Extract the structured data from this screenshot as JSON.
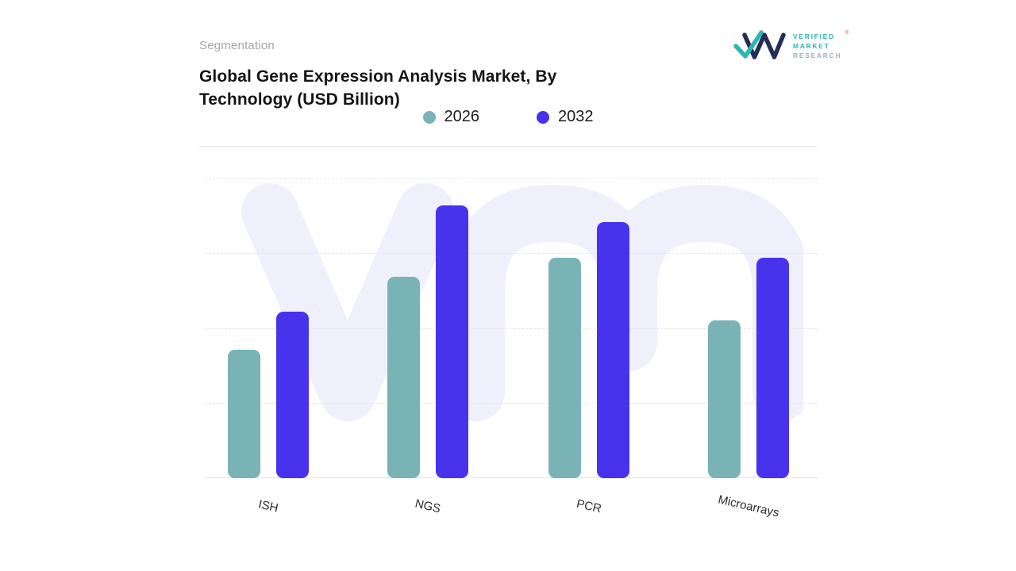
{
  "header": {
    "eyebrow": "Segmentation",
    "title_line1": "Global Gene Expression Analysis Market, By",
    "title_line2": "Technology (USD Billion)"
  },
  "logo": {
    "line1": "VERIFIED",
    "line2": "MARKET",
    "line3": "RESEARCH",
    "registered": "®",
    "mark_dark_color": "#232d57",
    "mark_teal_color": "#2eb6b0"
  },
  "legend": [
    {
      "label": "2026",
      "color": "#79b3b6"
    },
    {
      "label": "2032",
      "color": "#4733eb"
    }
  ],
  "chart_data": {
    "type": "bar",
    "title": "Global Gene Expression Analysis Market, By Technology (USD Billion)",
    "categories": [
      "ISH",
      "NGS",
      "PCR",
      "Microarrays"
    ],
    "series": [
      {
        "name": "2026",
        "color": "#79b3b6",
        "values": [
          4.7,
          7.4,
          8.1,
          5.8
        ]
      },
      {
        "name": "2032",
        "color": "#4733eb",
        "values": [
          6.1,
          10.0,
          9.4,
          8.1
        ]
      }
    ],
    "xlabel": "",
    "ylabel": "",
    "ylim": [
      0,
      11
    ],
    "y_axis_labels_visible": false,
    "grid": "horizontal-dashed",
    "legend_position": "top-center",
    "watermark": "vm"
  }
}
